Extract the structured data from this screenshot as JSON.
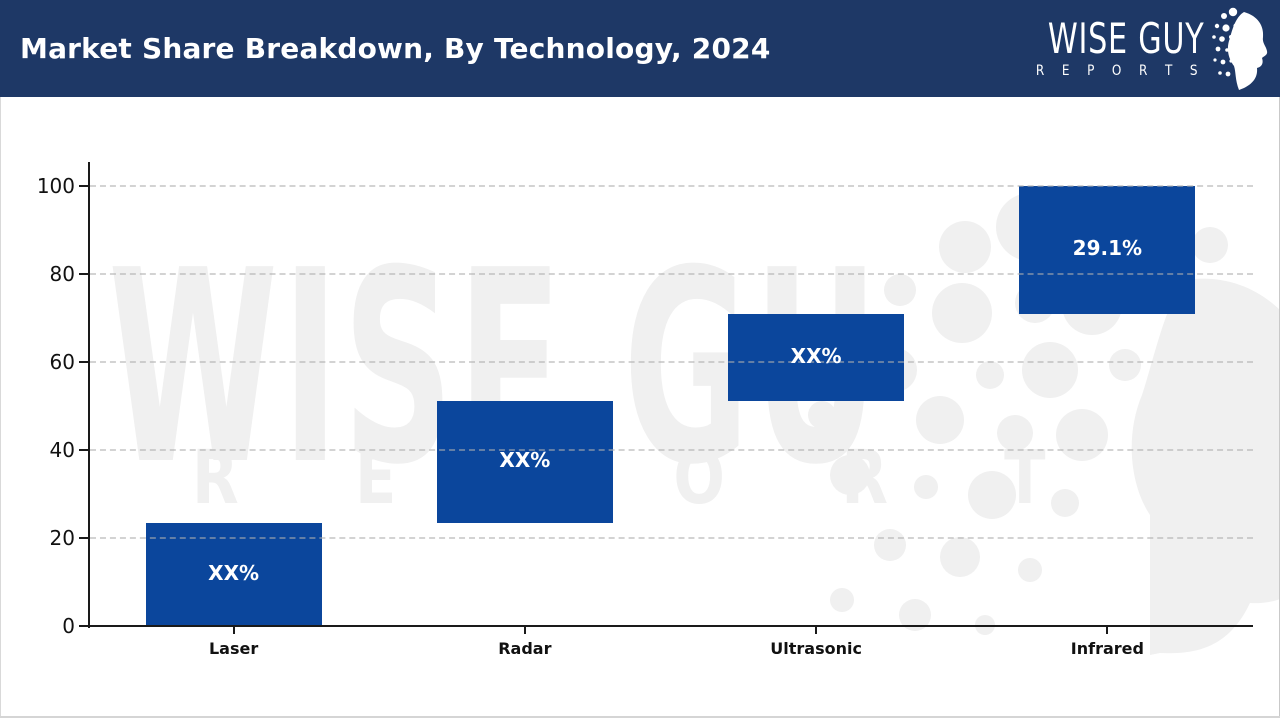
{
  "header": {
    "title": "Market Share Breakdown, By Technology, 2024",
    "bg_color": "#1e3866",
    "logo": {
      "line1": "WISE GUY",
      "line2": "R E P O R T S"
    }
  },
  "watermark": {
    "line1": "WISE GU",
    "line2": "R E P O R T"
  },
  "chart_data": {
    "type": "bar",
    "subtype": "floating-waterfall",
    "title": "Market Share Breakdown, By Technology, 2024",
    "categories": [
      "Laser",
      "Radar",
      "Ultrasonic",
      "Infrared"
    ],
    "segments": [
      {
        "category": "Laser",
        "start": 0,
        "end": 23.3,
        "label": "XX%"
      },
      {
        "category": "Radar",
        "start": 23.3,
        "end": 51.1,
        "label": "XX%"
      },
      {
        "category": "Ultrasonic",
        "start": 51.1,
        "end": 70.9,
        "label": "XX%"
      },
      {
        "category": "Infrared",
        "start": 70.9,
        "end": 100.0,
        "label": "29.1%"
      }
    ],
    "xlabel": "",
    "ylabel": "",
    "yticks": [
      0,
      20,
      40,
      60,
      80,
      100
    ],
    "ylim": [
      0,
      105.5
    ],
    "grid": "horizontal-dashed",
    "legend": "none",
    "bar_color": "#0b469c",
    "axis_color": "#1a1a1a"
  }
}
